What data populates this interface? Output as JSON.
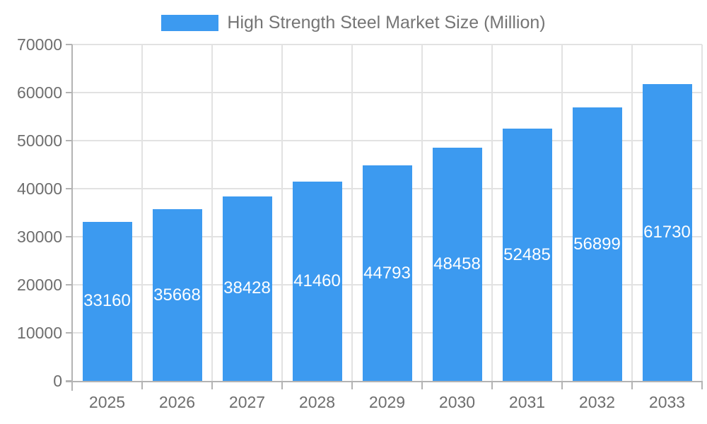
{
  "chart_data": {
    "type": "bar",
    "title": "High Strength Steel Market Size (Million)",
    "legend_entries": [
      "High Strength Steel Market Size (Million)"
    ],
    "legend_position": "top",
    "categories": [
      "2025",
      "2026",
      "2027",
      "2028",
      "2029",
      "2030",
      "2031",
      "2032",
      "2033"
    ],
    "series": [
      {
        "name": "High Strength Steel Market Size (Million)",
        "values": [
          33160,
          35668,
          38428,
          41460,
          44793,
          48458,
          52485,
          56899,
          61730
        ]
      }
    ],
    "data_labels": [
      "33160",
      "35668",
      "38428",
      "41460",
      "44793",
      "48458",
      "52485",
      "56899",
      "61730"
    ],
    "xlabel": "",
    "ylabel": "",
    "ylim": [
      0,
      70000
    ],
    "ytick_step": 10000,
    "ytick_labels": [
      "0",
      "10000",
      "20000",
      "30000",
      "40000",
      "50000",
      "60000",
      "70000"
    ],
    "grid": true,
    "colors": {
      "bar": "#3c9af0",
      "bar_label": "#ffffff",
      "grid": "#e2e2e2",
      "axis": "#b3b3b3",
      "text": "#6e6e6e",
      "legend_text": "#757575",
      "background": "#ffffff"
    }
  }
}
